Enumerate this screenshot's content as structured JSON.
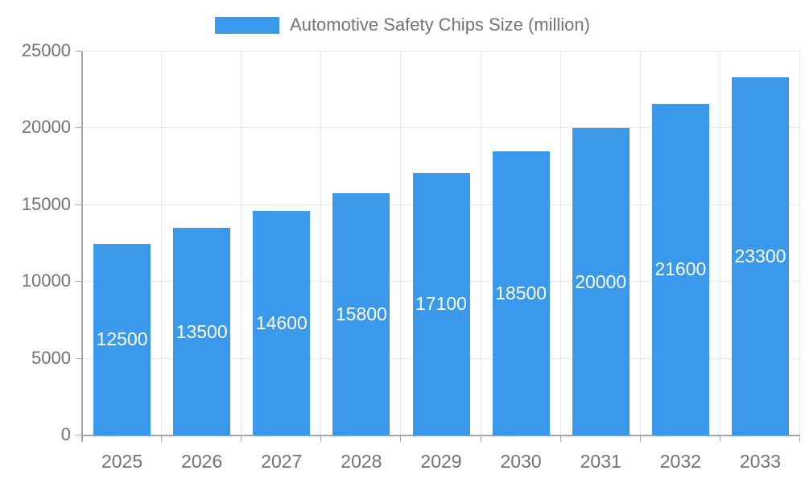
{
  "chart_data": {
    "type": "bar",
    "title": "Automotive Safety Chips Size (million)",
    "categories": [
      "2025",
      "2026",
      "2027",
      "2028",
      "2029",
      "2030",
      "2031",
      "2032",
      "2033"
    ],
    "values": [
      12500,
      13500,
      14600,
      15800,
      17100,
      18500,
      20000,
      21600,
      23300
    ],
    "series": [
      {
        "name": "Automotive Safety Chips Size (million)",
        "values": [
          12500,
          13500,
          14600,
          15800,
          17100,
          18500,
          20000,
          21600,
          23300
        ]
      }
    ],
    "xlabel": "",
    "ylabel": "",
    "ylim": [
      0,
      25000
    ],
    "yticks": [
      0,
      5000,
      10000,
      15000,
      20000,
      25000
    ],
    "grid": true,
    "legend_position": "top",
    "bar_labels_inside": true
  },
  "colors": {
    "bar": "#3B99EC",
    "bar_label": "#ffffff",
    "grid": "#E6E6E6",
    "axis": "#A6A6A6",
    "text": "#737373"
  }
}
